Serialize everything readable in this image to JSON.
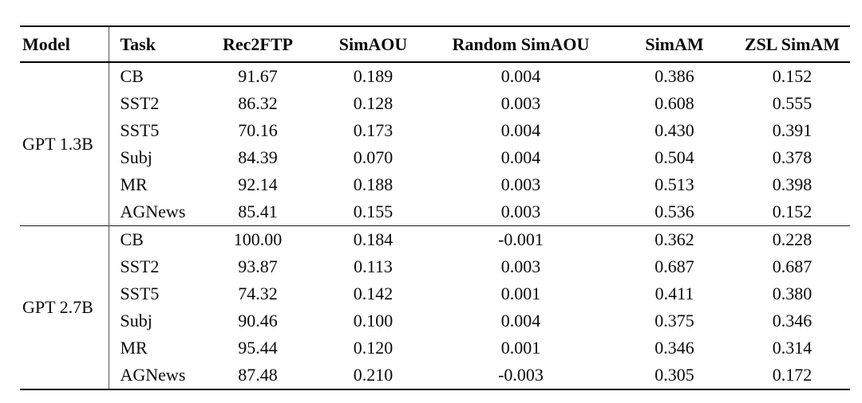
{
  "table": {
    "headers": [
      "Model",
      "Task",
      "Rec2FTP",
      "SimAOU",
      "Random SimAOU",
      "SimAM",
      "ZSL SimAM"
    ],
    "groups": [
      {
        "model": "GPT 1.3B",
        "rows": [
          {
            "task": "CB",
            "values": [
              "91.67",
              "0.189",
              "0.004",
              "0.386",
              "0.152"
            ]
          },
          {
            "task": "SST2",
            "values": [
              "86.32",
              "0.128",
              "0.003",
              "0.608",
              "0.555"
            ]
          },
          {
            "task": "SST5",
            "values": [
              "70.16",
              "0.173",
              "0.004",
              "0.430",
              "0.391"
            ]
          },
          {
            "task": "Subj",
            "values": [
              "84.39",
              "0.070",
              "0.004",
              "0.504",
              "0.378"
            ]
          },
          {
            "task": "MR",
            "values": [
              "92.14",
              "0.188",
              "0.003",
              "0.513",
              "0.398"
            ]
          },
          {
            "task": "AGNews",
            "values": [
              "85.41",
              "0.155",
              "0.003",
              "0.536",
              "0.152"
            ]
          }
        ]
      },
      {
        "model": "GPT 2.7B",
        "rows": [
          {
            "task": "CB",
            "values": [
              "100.00",
              "0.184",
              "-0.001",
              "0.362",
              "0.228"
            ]
          },
          {
            "task": "SST2",
            "values": [
              "93.87",
              "0.113",
              "0.003",
              "0.687",
              "0.687"
            ]
          },
          {
            "task": "SST5",
            "values": [
              "74.32",
              "0.142",
              "0.001",
              "0.411",
              "0.380"
            ]
          },
          {
            "task": "Subj",
            "values": [
              "90.46",
              "0.100",
              "0.004",
              "0.375",
              "0.346"
            ]
          },
          {
            "task": "MR",
            "values": [
              "95.44",
              "0.120",
              "0.001",
              "0.346",
              "0.314"
            ]
          },
          {
            "task": "AGNews",
            "values": [
              "87.48",
              "0.210",
              "-0.003",
              "0.305",
              "0.172"
            ]
          }
        ]
      }
    ],
    "colors": {
      "background": "#ffffff",
      "text": "#0a0a0a",
      "rule": "#000000",
      "column_divider": "#555555"
    }
  }
}
